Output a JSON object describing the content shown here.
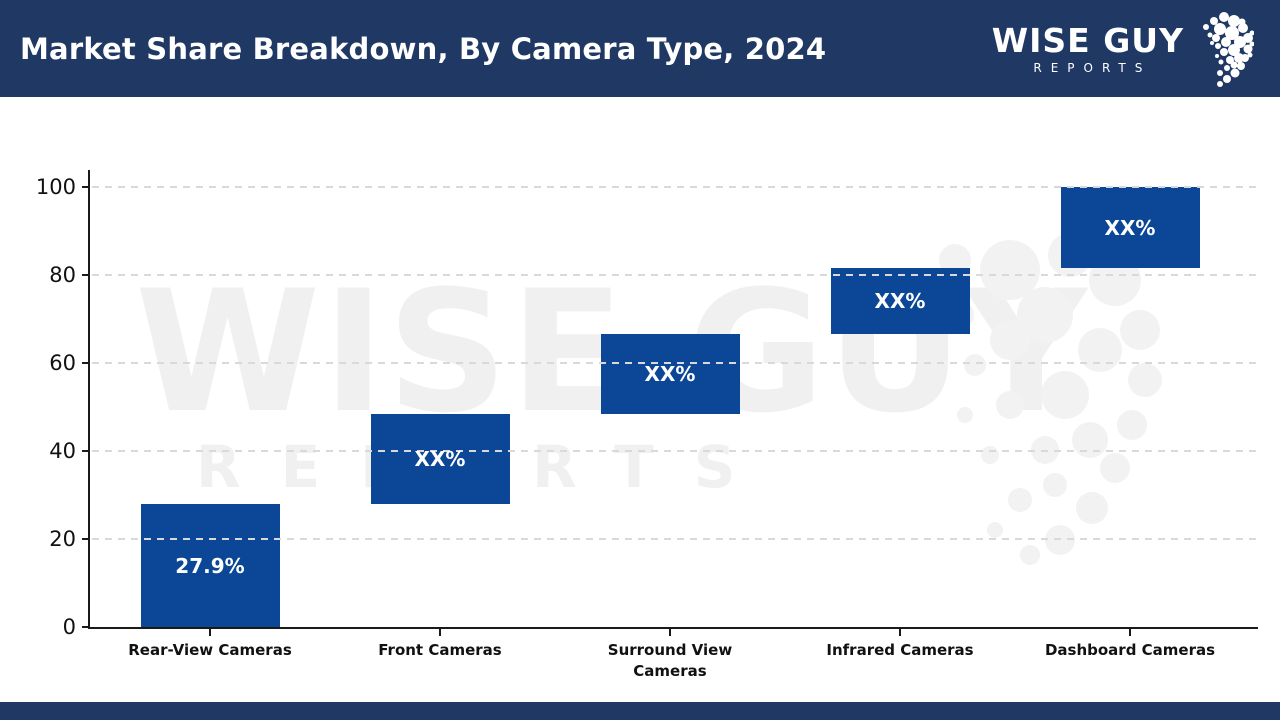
{
  "header": {
    "title": "Market Share Breakdown, By Camera Type, 2024",
    "logo": {
      "line1": "WISE GUY",
      "line2": "REPORTS"
    }
  },
  "watermark": {
    "line1": "WISE GUY",
    "line2": "REPORTS"
  },
  "colors": {
    "header_bg": "#203864",
    "footer_bg": "#203864",
    "bar": "#0b4796",
    "bar_label_text": "#ffffff",
    "grid": "#d9d9d9",
    "axis": "#1a1a1a",
    "tick_text": "#111111",
    "watermark": "#f0f0f0"
  },
  "chart_data": {
    "type": "bar",
    "subtype": "waterfall",
    "title": "Market Share Breakdown, By Camera Type, 2024",
    "xlabel": "",
    "ylabel": "",
    "ylim": [
      0,
      100
    ],
    "yticks": [
      0,
      20,
      40,
      60,
      80,
      100
    ],
    "grid": true,
    "legend": "none",
    "categories": [
      "Rear-View Cameras",
      "Front Cameras",
      "Surround View Cameras",
      "Infrared Cameras",
      "Dashboard Cameras"
    ],
    "segments": [
      {
        "start": 0,
        "end": 27.9,
        "label": "27.9%"
      },
      {
        "start": 27.9,
        "end": 48.5,
        "label": "XX%"
      },
      {
        "start": 48.5,
        "end": 66.5,
        "label": "XX%"
      },
      {
        "start": 66.5,
        "end": 81.5,
        "label": "XX%"
      },
      {
        "start": 81.5,
        "end": 100,
        "label": "XX%"
      }
    ]
  }
}
